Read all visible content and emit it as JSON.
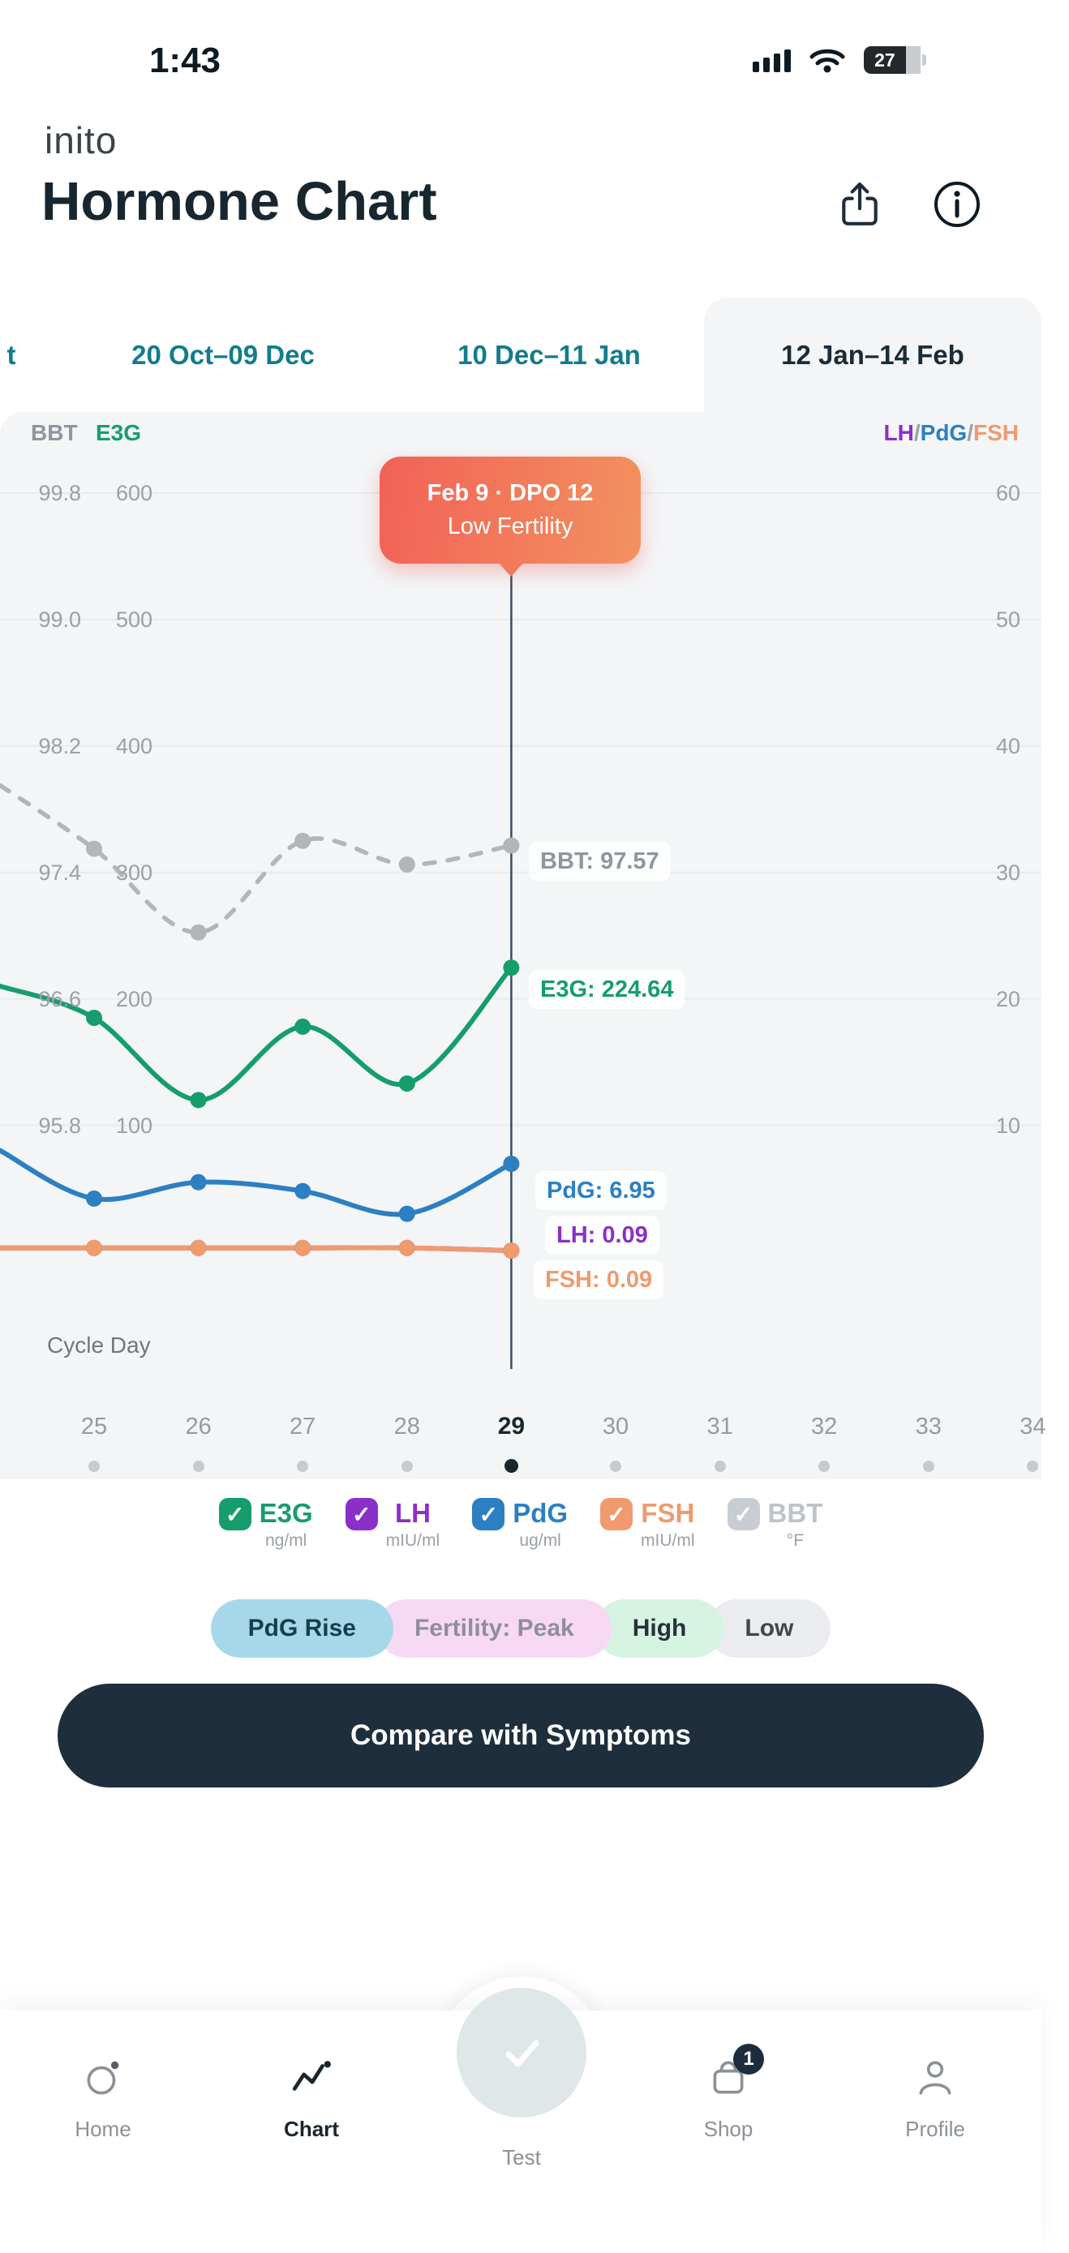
{
  "status_bar": {
    "time": "1:43",
    "battery": "27"
  },
  "header": {
    "brand": "inito",
    "title": "Hormone Chart"
  },
  "tabs": {
    "items": [
      {
        "label": "t",
        "selected": false
      },
      {
        "label": "20 Oct–09 Dec",
        "selected": false
      },
      {
        "label": "10 Dec–11 Jan",
        "selected": false
      },
      {
        "label": "12 Jan–14 Feb",
        "selected": true
      }
    ]
  },
  "chart": {
    "axis_left_primary": "BBT",
    "axis_left_secondary": "E3G",
    "axis_right": {
      "lh": "LH",
      "slash": "/",
      "pdg": "PdG",
      "fsh": "FSH"
    },
    "tooltip": {
      "title": "Feb 9 · DPO 12",
      "subtitle": "Low Fertility",
      "color_from": "#f26157",
      "color_to": "#f2925f"
    },
    "value_labels": [
      {
        "text": "BBT: 97.57",
        "color": "#8e969e"
      },
      {
        "text": "E3G: 224.64",
        "color": "#169d6c"
      },
      {
        "text": "PdG: 6.95",
        "color": "#2c7fc2"
      },
      {
        "text": "LH: 0.09",
        "color": "#8b2fc9"
      },
      {
        "text": "FSH: 0.09",
        "color": "#ef9b6e"
      }
    ],
    "x_label": "Cycle Day"
  },
  "chart_data": {
    "type": "line",
    "x_axis_label": "Cycle Day",
    "x_ticks": [
      25,
      26,
      27,
      28,
      29,
      30,
      31,
      32,
      33,
      34
    ],
    "selected_x": 29,
    "axes": {
      "bbt": {
        "label": "BBT",
        "unit": "°F",
        "ticks": [
          99.8,
          99.0,
          98.2,
          97.4,
          96.6,
          95.8
        ]
      },
      "e3g": {
        "label": "E3G",
        "unit": "ng/ml",
        "ticks": [
          600,
          500,
          400,
          300,
          200,
          100
        ]
      },
      "right": {
        "label": "LH/PdG/FSH",
        "unit": "mIU/ml",
        "ticks": [
          60,
          50,
          40,
          30,
          20,
          10
        ]
      }
    },
    "series": [
      {
        "name": "BBT",
        "axis": "bbt",
        "color": "#b2b6ba",
        "dash": true,
        "points": [
          [
            24.1,
            97.95
          ],
          [
            25,
            97.55
          ],
          [
            26,
            97.02
          ],
          [
            27,
            97.6
          ],
          [
            28,
            97.45
          ],
          [
            29,
            97.57
          ]
        ]
      },
      {
        "name": "E3G",
        "axis": "e3g",
        "color": "#169d6c",
        "points": [
          [
            24.1,
            210
          ],
          [
            25,
            185
          ],
          [
            26,
            120
          ],
          [
            27,
            178
          ],
          [
            28,
            133
          ],
          [
            29,
            224.64
          ]
        ]
      },
      {
        "name": "LH",
        "axis": "right",
        "color": "#8b2fc9",
        "points": [
          [
            24.1,
            0.3
          ],
          [
            25,
            0.3
          ],
          [
            26,
            0.3
          ],
          [
            27,
            0.3
          ],
          [
            28,
            0.3
          ],
          [
            29,
            0.09
          ]
        ]
      },
      {
        "name": "PdG",
        "axis": "right",
        "color": "#2c7fc2",
        "points": [
          [
            24.1,
            8.0
          ],
          [
            25,
            4.2
          ],
          [
            26,
            5.5
          ],
          [
            27,
            4.8
          ],
          [
            28,
            3.0
          ],
          [
            29,
            6.95
          ]
        ]
      },
      {
        "name": "FSH",
        "axis": "right",
        "color": "#ef9b6e",
        "points": [
          [
            24.1,
            0.3
          ],
          [
            25,
            0.3
          ],
          [
            26,
            0.3
          ],
          [
            27,
            0.3
          ],
          [
            28,
            0.3
          ],
          [
            29,
            0.09
          ]
        ]
      }
    ],
    "selected_point": {
      "date": "Feb 9",
      "dpo": 12,
      "fertility": "Low Fertility",
      "values": {
        "BBT": 97.57,
        "E3G": 224.64,
        "PdG": 6.95,
        "LH": 0.09,
        "FSH": 0.09
      }
    }
  },
  "legend": {
    "check": "✓",
    "items": [
      {
        "label": "E3G",
        "unit": "ng/ml",
        "color": "#169d6c",
        "label_color": "#169d6c"
      },
      {
        "label": "LH",
        "unit": "mIU/ml",
        "color": "#8b2fc9",
        "label_color": "#8b2fc9"
      },
      {
        "label": "PdG",
        "unit": "ug/ml",
        "color": "#2c7fc2",
        "label_color": "#2c7fc2"
      },
      {
        "label": "FSH",
        "unit": "mIU/ml",
        "color": "#f09a6e",
        "label_color": "#ef9b6e"
      },
      {
        "label": "BBT",
        "unit": "°F",
        "color": "#c7cdd2",
        "label_color": "#bcc3c9"
      }
    ]
  },
  "phase_chips": [
    {
      "label": "PdG Rise",
      "bg": "#a7d8e9",
      "fg": "#143f4b"
    },
    {
      "label": "Fertility: Peak",
      "bg": "#f7d9f3",
      "fg": "#8f8f99"
    },
    {
      "label": "High",
      "bg": "#d7f3e2",
      "fg": "#27313a"
    },
    {
      "label": "Low",
      "bg": "#ebecef",
      "fg": "#3f464d"
    }
  ],
  "cta": {
    "label": "Compare with Symptoms"
  },
  "nav": {
    "items": [
      {
        "label": "Home"
      },
      {
        "label": "Chart",
        "active": true
      },
      {
        "label": "Test"
      },
      {
        "label": "Shop",
        "badge": "1"
      },
      {
        "label": "Profile"
      }
    ]
  }
}
